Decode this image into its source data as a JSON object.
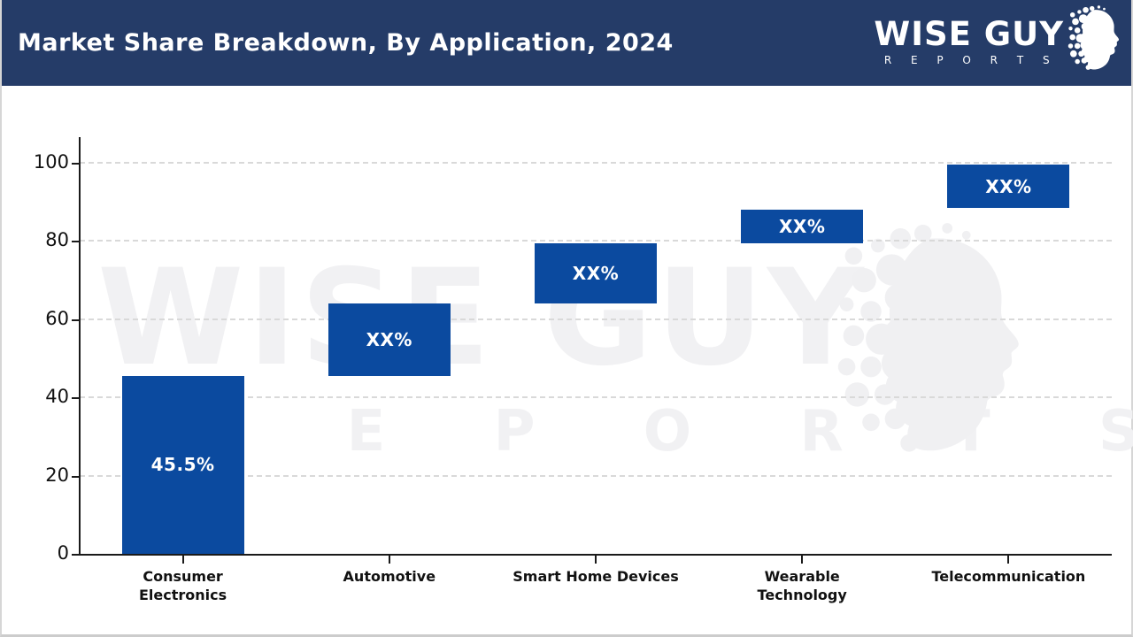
{
  "header": {
    "title": "Market Share Breakdown, By Application, 2024",
    "logo": {
      "line1": "WISE GUY",
      "line2": "R E P O R T S"
    }
  },
  "watermark": {
    "line1": "WISE GUY",
    "line2": "R E P O R T S"
  },
  "colors": {
    "header_bg": "#253C68",
    "bar": "#0B4A9F",
    "grid": "#D9D9D9",
    "axis": "#1A1A1A",
    "watermark": "#F1F1F3",
    "value_label": "#FFFFFF"
  },
  "chart_data": {
    "type": "bar",
    "subtype": "waterfall",
    "title": "Market Share Breakdown, By Application, 2024",
    "categories": [
      "Consumer\nElectronics",
      "Automotive",
      "Smart Home Devices",
      "Wearable\nTechnology",
      "Telecommunication"
    ],
    "segments": [
      {
        "category": "Consumer Electronics",
        "start": 0,
        "end": 45.5,
        "label": "45.5%"
      },
      {
        "category": "Automotive",
        "start": 45.5,
        "end": 64,
        "label": "XX%"
      },
      {
        "category": "Smart Home Devices",
        "start": 64,
        "end": 79.5,
        "label": "XX%"
      },
      {
        "category": "Wearable Technology",
        "start": 79.5,
        "end": 88,
        "label": "XX%"
      },
      {
        "category": "Telecommunication",
        "start": 88.5,
        "end": 99.5,
        "label": "XX%"
      }
    ],
    "yticks": [
      0,
      20,
      40,
      60,
      80,
      100
    ],
    "ylim": [
      0,
      106
    ],
    "grid": "horizontal-dashed",
    "legend": "none",
    "xlabel": "",
    "ylabel": ""
  }
}
